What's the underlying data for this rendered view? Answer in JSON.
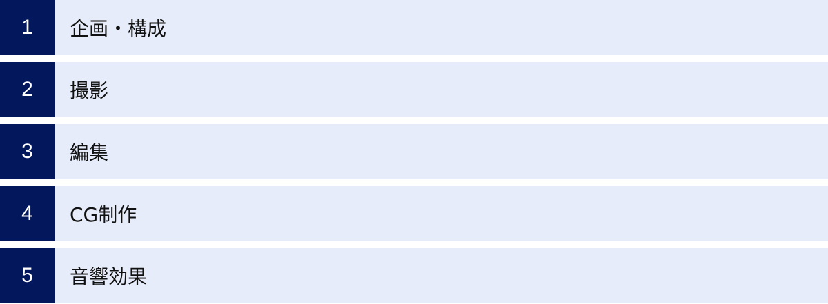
{
  "colors": {
    "number_bg": "#03175c",
    "row_bg": "#e6ecf9"
  },
  "items": [
    {
      "number": "1",
      "label": "企画・構成"
    },
    {
      "number": "2",
      "label": "撮影"
    },
    {
      "number": "3",
      "label": "編集"
    },
    {
      "number": "4",
      "label": "CG制作"
    },
    {
      "number": "5",
      "label": "音響効果"
    }
  ]
}
